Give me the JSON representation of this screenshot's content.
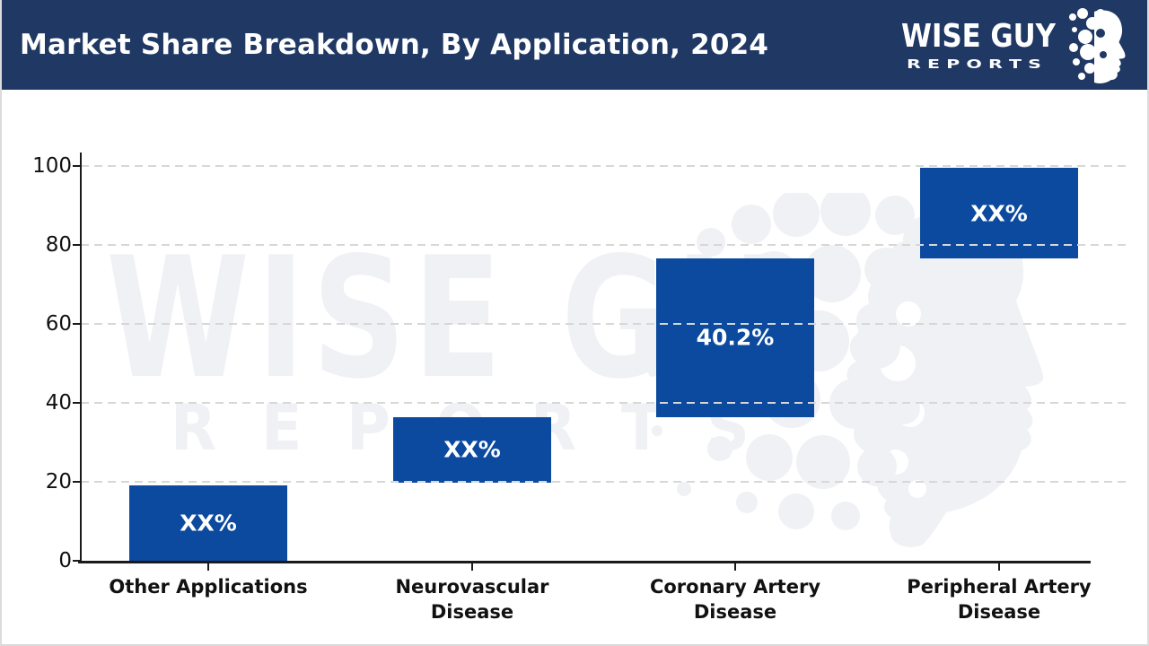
{
  "header": {
    "title": "Market Share Breakdown, By Application, 2024",
    "background_color": "#1f3864",
    "logo": {
      "wordmark": "WISE GUY",
      "subtext": "R E P O R T S"
    }
  },
  "watermark": {
    "wordmark": "WISE GU",
    "subtext": "R E P O R T S",
    "color": "#f0f1f4"
  },
  "chart_data": {
    "type": "bar",
    "subtype": "floating-segment-waterfall",
    "title": "Market Share Breakdown, By Application, 2024",
    "categories": [
      "Other Applications",
      "Neurovascular\nDisease",
      "Coronary Artery\nDisease",
      "Peripheral Artery\nDisease"
    ],
    "segments": [
      {
        "category": "Other Applications",
        "start": 0,
        "end": 19.0,
        "label": "XX%"
      },
      {
        "category": "Neurovascular Disease",
        "start": 19.8,
        "end": 36.4,
        "label": "XX%"
      },
      {
        "category": "Coronary Artery Disease",
        "start": 36.4,
        "end": 76.6,
        "label": "40.2%"
      },
      {
        "category": "Peripheral Artery Disease",
        "start": 76.6,
        "end": 99.5,
        "label": "XX%"
      }
    ],
    "y_ticks": [
      0,
      20,
      40,
      60,
      80,
      100
    ],
    "ylim": [
      0,
      103.5
    ],
    "xlabel": "",
    "ylabel": "",
    "grid": "horizontal-dashed",
    "legend": "none",
    "bar_color": "#0b4a9e",
    "value_label_color": "#ffffff",
    "grid_color": "#d7d7d7",
    "axis_color": "#1a1a1a"
  }
}
